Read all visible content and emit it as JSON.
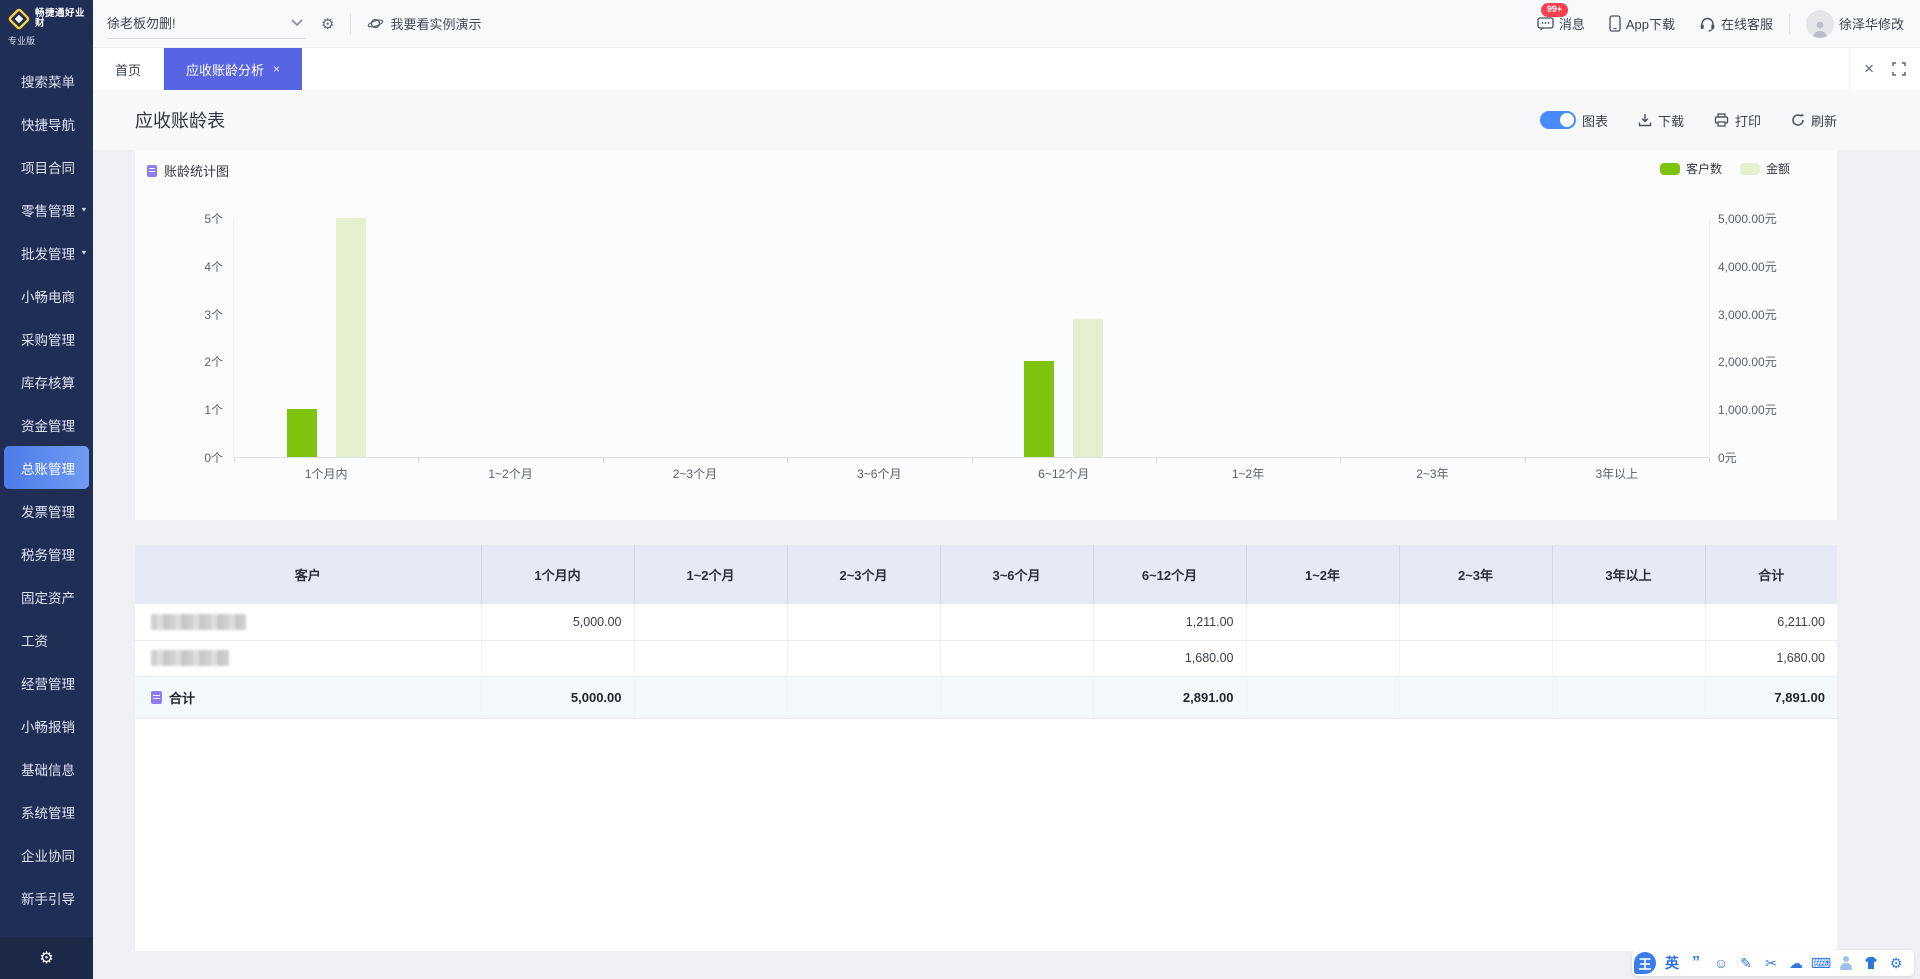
{
  "app": {
    "brand": "畅捷通好业财",
    "edition": "专业版"
  },
  "sidebar": {
    "items": [
      {
        "label": "搜索菜单"
      },
      {
        "label": "快捷导航"
      },
      {
        "label": "项目合同"
      },
      {
        "label": "零售管理",
        "arrow": true
      },
      {
        "label": "批发管理",
        "arrow": true
      },
      {
        "label": "小畅电商"
      },
      {
        "label": "采购管理"
      },
      {
        "label": "库存核算"
      },
      {
        "label": "资金管理"
      },
      {
        "label": "总账管理",
        "active": true
      },
      {
        "label": "发票管理"
      },
      {
        "label": "税务管理"
      },
      {
        "label": "固定资产"
      },
      {
        "label": "工资"
      },
      {
        "label": "经营管理"
      },
      {
        "label": "小畅报销"
      },
      {
        "label": "基础信息"
      },
      {
        "label": "系统管理"
      },
      {
        "label": "企业协同"
      },
      {
        "label": "新手引导"
      }
    ]
  },
  "topbar": {
    "company": "徐老板勿删!",
    "demo_label": "我要看实例演示",
    "messages_label": "消息",
    "messages_badge": "99+",
    "app_download_label": "App下载",
    "support_label": "在线客服",
    "username": "徐泽华修改"
  },
  "tabs": [
    {
      "label": "首页",
      "active": false,
      "closable": false
    },
    {
      "label": "应收账龄分析",
      "active": true,
      "closable": true
    }
  ],
  "page": {
    "title": "应收账龄表",
    "toolbar": {
      "chart_toggle_label": "图表",
      "download_label": "下载",
      "print_label": "打印",
      "refresh_label": "刷新"
    }
  },
  "chart_data": {
    "type": "bar",
    "title": "账龄统计图",
    "categories": [
      "1个月内",
      "1~2个月",
      "2~3个月",
      "3~6个月",
      "6~12个月",
      "1~2年",
      "2~3年",
      "3年以上"
    ],
    "series": [
      {
        "name": "客户数",
        "axis": "left",
        "color": "#7ec30e",
        "values": [
          1,
          0,
          0,
          0,
          2,
          0,
          0,
          0
        ]
      },
      {
        "name": "金额",
        "axis": "right",
        "color": "#e5f0cf",
        "values": [
          5000,
          0,
          0,
          0,
          2891,
          0,
          0,
          0
        ]
      }
    ],
    "left_axis": {
      "ticks": [
        "0个",
        "1个",
        "2个",
        "3个",
        "4个",
        "5个"
      ],
      "max": 5
    },
    "right_axis": {
      "ticks": [
        "0元",
        "1,000.00元",
        "2,000.00元",
        "3,000.00元",
        "4,000.00元",
        "5,000.00元"
      ],
      "max": 5000
    },
    "grid": false,
    "legend_position": "top-right"
  },
  "table": {
    "headers": [
      "客户",
      "1个月内",
      "1~2个月",
      "2~3个月",
      "3~6个月",
      "6~12个月",
      "1~2年",
      "2~3年",
      "3年以上",
      "合计"
    ],
    "rows": [
      {
        "customer_redacted": true,
        "values": [
          "5,000.00",
          "",
          "",
          "",
          "1,211.00",
          "",
          "",
          "",
          "6,211.00"
        ]
      },
      {
        "customer_redacted": true,
        "values": [
          "",
          "",
          "",
          "",
          "1,680.00",
          "",
          "",
          "",
          "1,680.00"
        ]
      }
    ],
    "total": {
      "label": "合计",
      "values": [
        "5,000.00",
        "",
        "",
        "",
        "2,891.00",
        "",
        "",
        "",
        "7,891.00"
      ]
    }
  },
  "ime": {
    "lang_badge": "王",
    "mode_label": "英",
    "icons": [
      "quote",
      "smiley",
      "pencil",
      "scissors",
      "cloud",
      "keyboard",
      "person",
      "shirt",
      "gear"
    ]
  },
  "colors": {
    "accent": "#5865e2",
    "sidebar_bg": "#202e55",
    "active_gradient_start": "#4d7be8",
    "series_green": "#7ec30e",
    "series_pale_green": "#e5f0cf",
    "table_header_bg": "#e6e9f6",
    "badge_red": "#f5424e",
    "toggle_blue": "#4a8cf7"
  }
}
